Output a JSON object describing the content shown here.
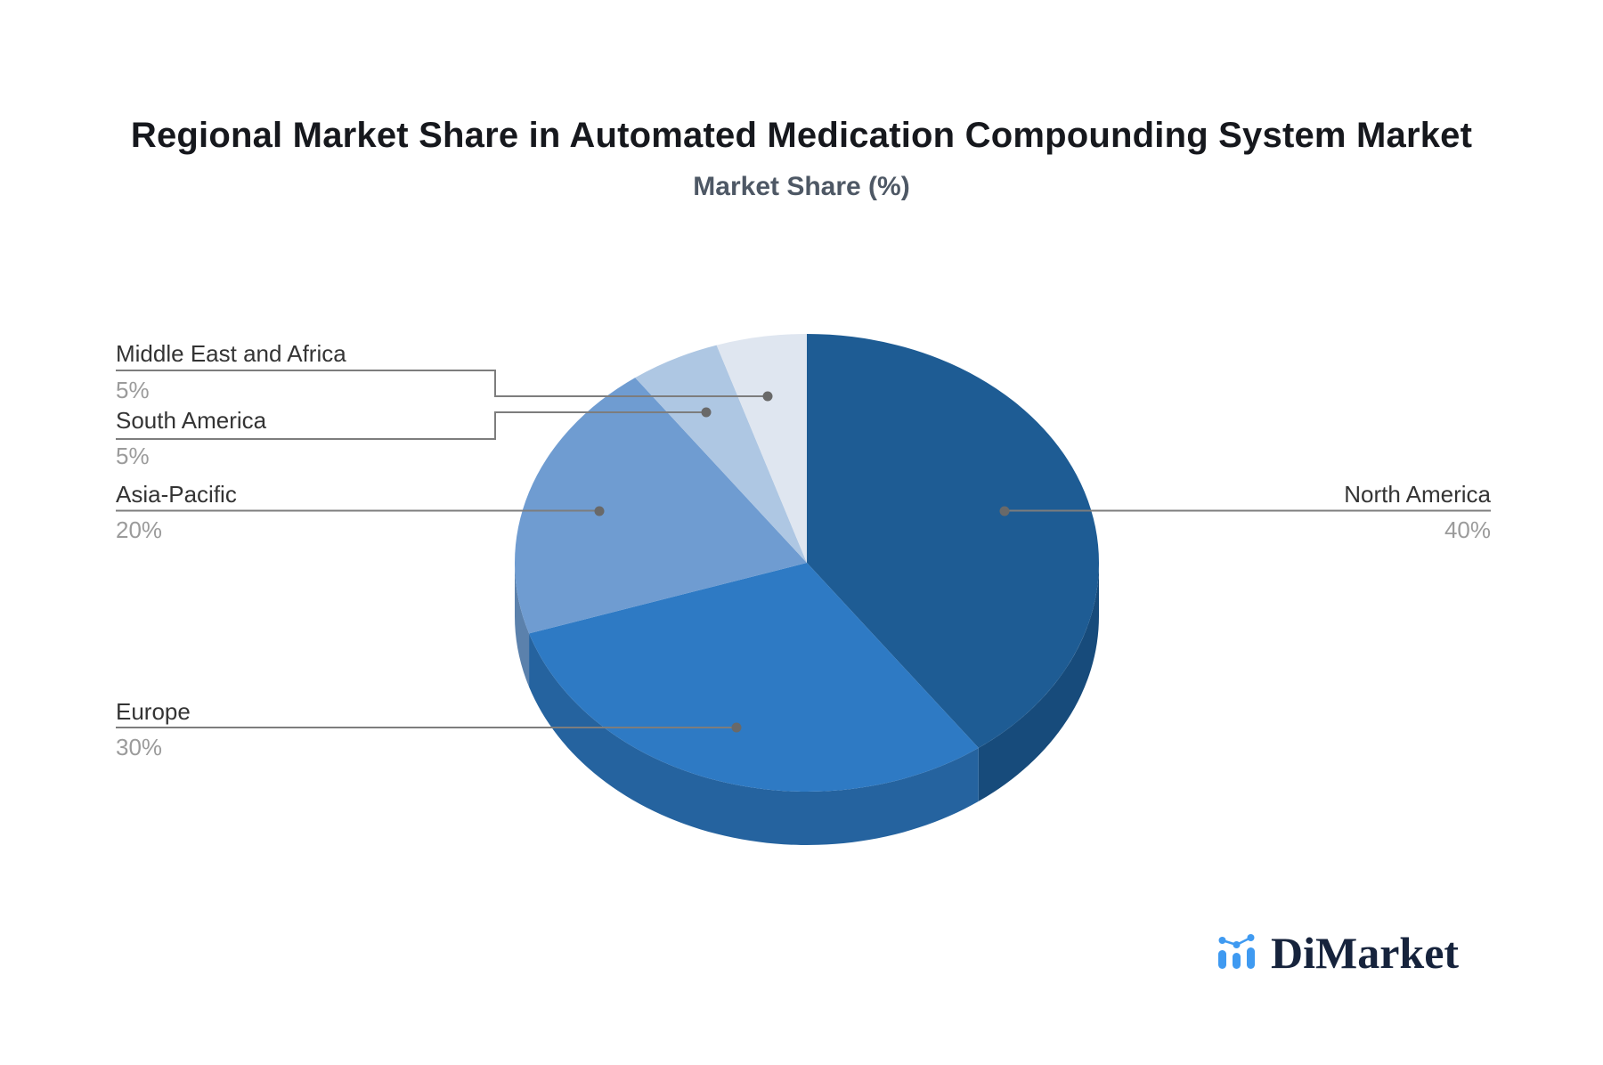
{
  "header": {
    "title": "Regional Market Share in Automated Medication Compounding System Market",
    "subtitle": "Market Share (%)"
  },
  "chart_data": {
    "type": "pie",
    "title": "Regional Market Share in Automated Medication Compounding System Market",
    "subtitle": "Market Share (%)",
    "unit": "%",
    "direction": "clockwise",
    "start_angle_deg": 0,
    "style": "3d-depth",
    "legend_position": "callout-labels",
    "slices": [
      {
        "label": "North America",
        "value": 40,
        "value_label": "40%",
        "color": "#1E5C94",
        "side_color": "#174B7B"
      },
      {
        "label": "Europe",
        "value": 30,
        "value_label": "30%",
        "color": "#2E7AC4",
        "side_color": "#25639F"
      },
      {
        "label": "Asia-Pacific",
        "value": 20,
        "value_label": "20%",
        "color": "#6F9CD1",
        "side_color": "#5B81AC"
      },
      {
        "label": "South America",
        "value": 5,
        "value_label": "5%",
        "color": "#AEC7E3",
        "side_color": "#8FA8C4"
      },
      {
        "label": "Middle East and Africa",
        "value": 5,
        "value_label": "5%",
        "color": "#DFE6F0",
        "side_color": "#BCC6D4"
      }
    ],
    "colors": {
      "label_text": "#343434",
      "value_text": "#9b9b9b",
      "leader_line": "#7d7d7d",
      "leader_dot": "#696969"
    }
  },
  "logo": {
    "brand": "DiMarket",
    "icon": "bar-line-chart-icon",
    "icon_color": "#3F9AF1",
    "text_color": "#16233c"
  }
}
